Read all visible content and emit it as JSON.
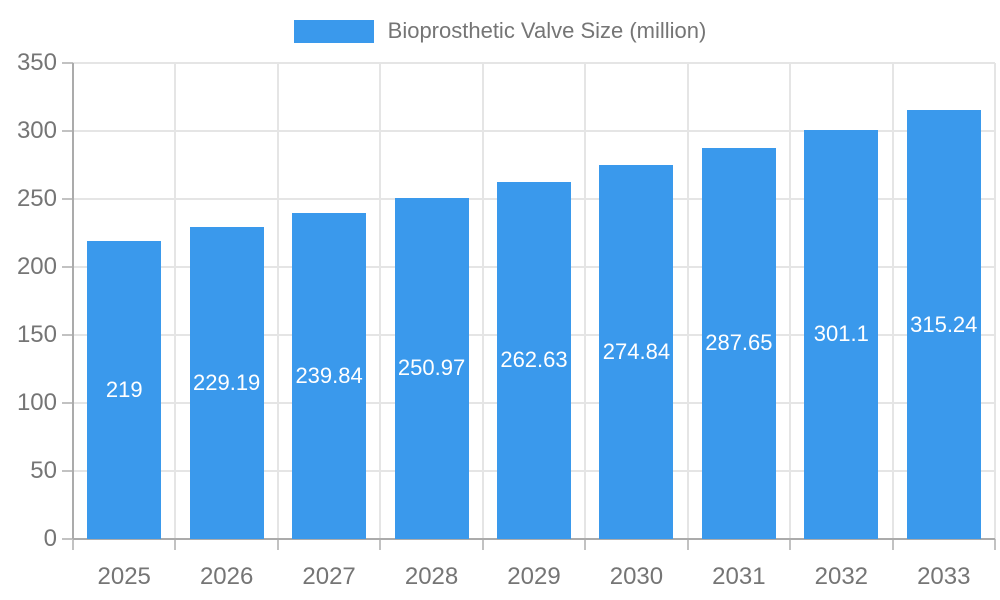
{
  "chart_data": {
    "type": "bar",
    "title": "",
    "legend": {
      "label": "Bioprosthetic Valve Size (million)",
      "position": "top"
    },
    "categories": [
      "2025",
      "2026",
      "2027",
      "2028",
      "2029",
      "2030",
      "2031",
      "2032",
      "2033"
    ],
    "series": [
      {
        "name": "Bioprosthetic Valve Size (million)",
        "values": [
          219,
          229.19,
          239.84,
          250.97,
          262.63,
          274.84,
          287.65,
          301.1,
          315.24
        ],
        "value_labels": [
          "219",
          "229.19",
          "239.84",
          "250.97",
          "262.63",
          "274.84",
          "287.65",
          "301.1",
          "315.24"
        ]
      }
    ],
    "xlabel": "",
    "ylabel": "",
    "ylim": [
      0,
      350
    ],
    "y_ticks": [
      0,
      50,
      100,
      150,
      200,
      250,
      300,
      350
    ],
    "grid": true,
    "value_labels_position": "center-of-bar",
    "colors": {
      "bar": "#3A99EC",
      "grid": "#E5E5E5",
      "axis": "#ABABAB",
      "tick": "#C2C2C2",
      "axis_text": "#757575",
      "bar_label_text": "#FFFFFF",
      "legend_text": "#757575"
    }
  }
}
